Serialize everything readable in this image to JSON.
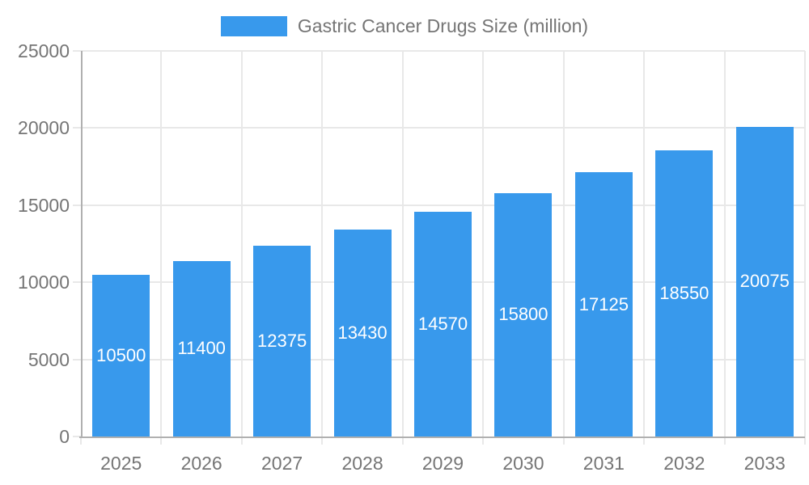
{
  "chart_data": {
    "type": "bar",
    "title": "",
    "legend": {
      "position": "top",
      "label": "Gastric Cancer Drugs Size (million)"
    },
    "categories": [
      "2025",
      "2026",
      "2027",
      "2028",
      "2029",
      "2030",
      "2031",
      "2032",
      "2033"
    ],
    "series": [
      {
        "name": "Gastric Cancer Drugs Size (million)",
        "values": [
          10500,
          11400,
          12375,
          13430,
          14570,
          15800,
          17125,
          18550,
          20075
        ]
      }
    ],
    "value_labels_inside_bars": true,
    "xlabel": "",
    "ylabel": "",
    "ylim": [
      0,
      25000
    ],
    "y_ticks": [
      0,
      5000,
      10000,
      15000,
      20000,
      25000
    ],
    "grid": true,
    "colors": {
      "bar": "#3899EC",
      "bar_value_label": "#FFFFFF",
      "axis_text": "#757575",
      "gridline": "#E8E8E8",
      "axis_line": "#B0B0B0",
      "background": "#FFFFFF"
    }
  }
}
